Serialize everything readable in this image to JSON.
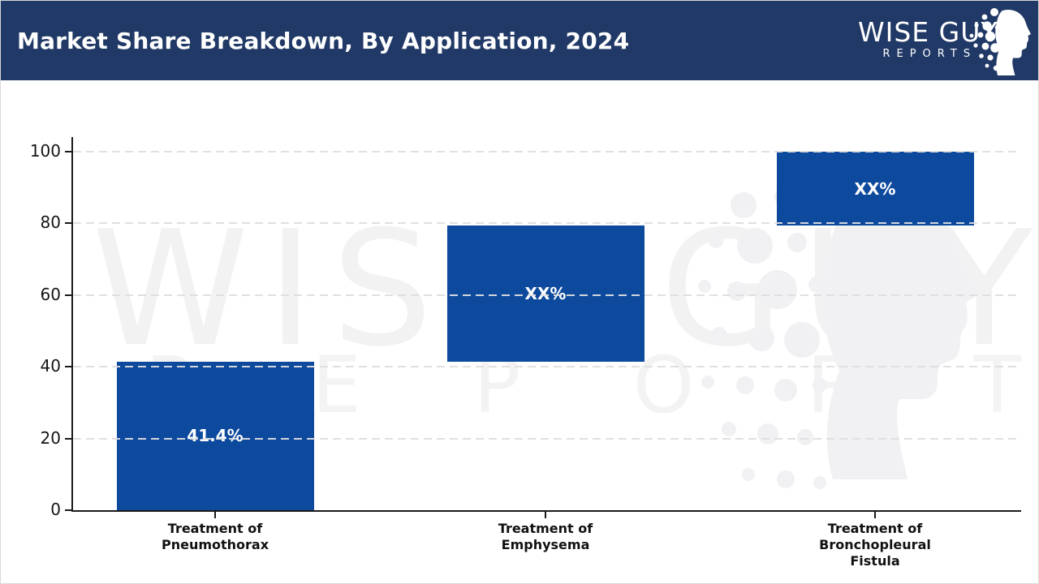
{
  "header": {
    "title": "Market Share Breakdown, By Application, 2024"
  },
  "logo": {
    "line1": "WISE GUY",
    "line2": "REPORTS"
  },
  "watermark": {
    "line1": "WISE GUY",
    "line2": "R E P O R T S"
  },
  "colors": {
    "header_bg": "#213966",
    "bar_blue": "#0d4a9e",
    "gridline": "#dedede",
    "axis": "#1a1a1a",
    "bar_label_text": "#ffffff",
    "watermark": "#f2f2f2"
  },
  "chart_data": {
    "type": "bar",
    "subtype": "waterfall-stacked-percent",
    "title": "Market Share Breakdown, By Application, 2024",
    "categories": [
      "Treatment of\nPneumothorax",
      "Treatment of\nEmphysema",
      "Treatment of\nBronchopleural\nFistula"
    ],
    "segments": [
      [
        0,
        41.4
      ],
      [
        41.4,
        79.3
      ],
      [
        79.3,
        100
      ]
    ],
    "bar_labels": [
      "41.4%",
      "XX%",
      "XX%"
    ],
    "values_pct": [
      41.4,
      37.9,
      20.7
    ],
    "yticks": [
      0,
      20,
      40,
      60,
      80,
      100
    ],
    "ylim": [
      0,
      104
    ],
    "xlabel": "",
    "ylabel": "",
    "grid": "horizontal-dashed",
    "legend": "none"
  }
}
